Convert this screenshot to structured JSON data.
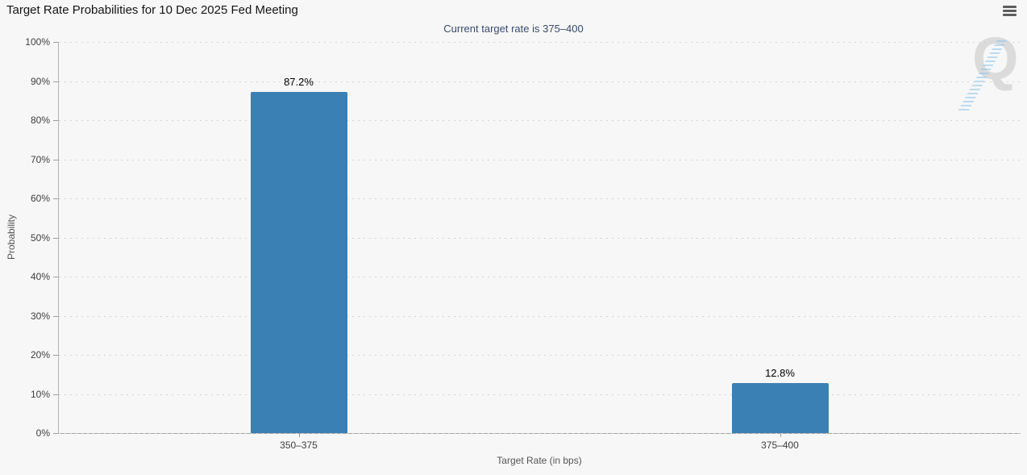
{
  "header": {
    "title": "Target Rate Probabilities for 10 Dec 2025 Fed Meeting",
    "subtitle": "Current target rate is 375–400"
  },
  "icons": {
    "menu": "hamburger-menu-icon",
    "watermark_letter": "Q"
  },
  "colors": {
    "background": "#f7f7f7",
    "bar": "#3a80b5",
    "subtitle_text": "#3a4a6e",
    "axis_line": "#a6a6a6",
    "gridline": "#d3d3d3",
    "watermark_gray": "#dbdbdb",
    "watermark_blue": "#89c4ee"
  },
  "chart_data": {
    "type": "bar",
    "title": "Target Rate Probabilities for 10 Dec 2025 Fed Meeting",
    "subtitle": "Current target rate is 375–400",
    "categories": [
      "350–375",
      "375–400"
    ],
    "values": [
      87.2,
      12.8
    ],
    "value_labels": [
      "87.2%",
      "12.8%"
    ],
    "xlabel": "Target Rate (in bps)",
    "ylabel": "Probability",
    "ylim": [
      0,
      100
    ],
    "ytick_step": 10,
    "ytick_labels": [
      "0%",
      "10%",
      "20%",
      "30%",
      "40%",
      "50%",
      "60%",
      "70%",
      "80%",
      "90%",
      "100%"
    ],
    "grid": "horizontal-dotted",
    "legend": "none",
    "bar_color": "#3a80b5"
  }
}
